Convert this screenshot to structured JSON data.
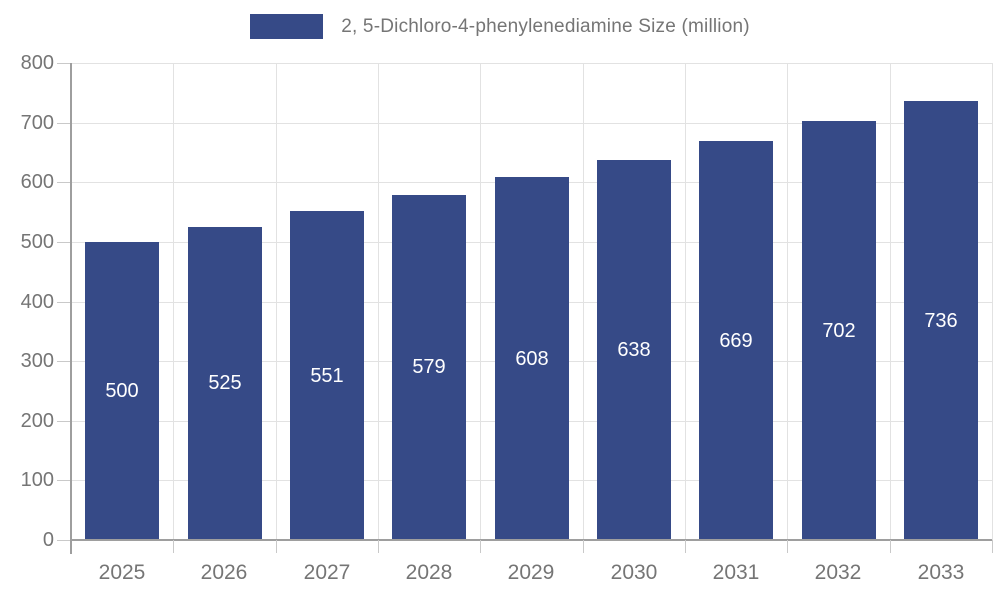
{
  "legend": {
    "label": "2, 5-Dichloro-4-phenylenediamine Size (million)"
  },
  "colors": {
    "bar": "#364a87",
    "grid": "#e2e2e2",
    "axis": "#9e9e9e",
    "tick": "#c9c9c9",
    "label_text": "#757575",
    "value_text": "#ffffff",
    "background": "#ffffff"
  },
  "chart_data": {
    "type": "bar",
    "title": "2, 5-Dichloro-4-phenylenediamine Size (million)",
    "categories": [
      "2025",
      "2026",
      "2027",
      "2028",
      "2029",
      "2030",
      "2031",
      "2032",
      "2033"
    ],
    "values": [
      500,
      525,
      551,
      579,
      608,
      638,
      669,
      702,
      736
    ],
    "xlabel": "",
    "ylabel": "",
    "ylim": [
      0,
      800
    ],
    "ytick_interval": 100,
    "yticks": [
      "0",
      "100",
      "200",
      "300",
      "400",
      "500",
      "600",
      "700",
      "800"
    ],
    "grid": true,
    "legend_position": "top",
    "value_labels": "inside-center"
  }
}
